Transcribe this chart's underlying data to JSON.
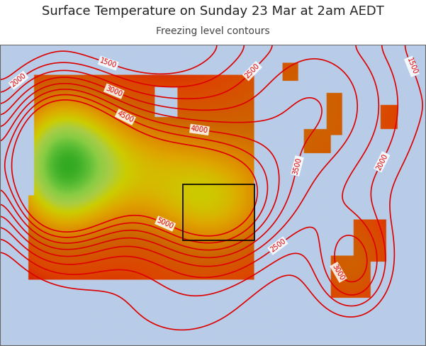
{
  "title": "Surface Temperature on Sunday 23 Mar at 2am AEDT",
  "subtitle": "Freezing level contours",
  "title_fontsize": 13,
  "subtitle_fontsize": 10,
  "bg_color": "#c8d8f0",
  "map_bg": "#b8cce8",
  "border_color": "#888888",
  "contour_color": "#dd0000",
  "contour_label_fontsize": 7,
  "nsw_box_color": "#000000",
  "figsize": [
    6.01,
    4.88
  ],
  "dpi": 100
}
